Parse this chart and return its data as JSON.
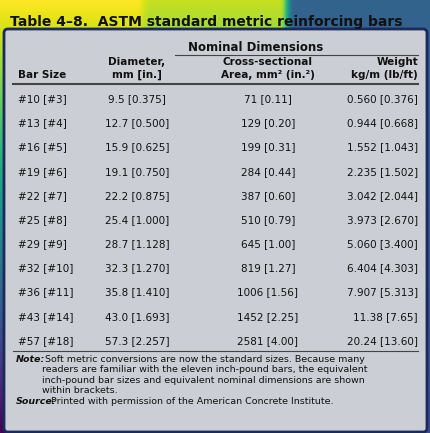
{
  "title": "Table 4–8.  ASTM standard metric reinforcing bars",
  "group_header": "Nominal Dimensions",
  "col_headers_row1": [
    "",
    "Diameter,",
    "Cross-sectional",
    "Weight"
  ],
  "col_headers_row2": [
    "Bar Size",
    "mm [in.]",
    "Area, mm² (in.²)",
    "kg/m (lb/ft)"
  ],
  "rows": [
    [
      "#10 [#3]",
      "9.5 [0.375]",
      "71 [0.11]",
      "0.560 [0.376]"
    ],
    [
      "#13 [#4]",
      "12.7 [0.500]",
      "129 [0.20]",
      "0.944 [0.668]"
    ],
    [
      "#16 [#5]",
      "15.9 [0.625]",
      "199 [0.31]",
      "1.552 [1.043]"
    ],
    [
      "#19 [#6]",
      "19.1 [0.750]",
      "284 [0.44]",
      "2.235 [1.502]"
    ],
    [
      "#22 [#7]",
      "22.2 [0.875]",
      "387 [0.60]",
      "3.042 [2.044]"
    ],
    [
      "#25 [#8]",
      "25.4 [1.000]",
      "510 [0.79]",
      "3.973 [2.670]"
    ],
    [
      "#29 [#9]",
      "28.7 [1.128]",
      "645 [1.00]",
      "5.060 [3.400]"
    ],
    [
      "#32 [#10]",
      "32.3 [1.270]",
      "819 [1.27]",
      "6.404 [4.303]"
    ],
    [
      "#36 [#11]",
      "35.8 [1.410]",
      "1006 [1.56]",
      "7.907 [5.313]"
    ],
    [
      "#43 [#14]",
      "43.0 [1.693]",
      "1452 [2.25]",
      "11.38 [7.65]"
    ],
    [
      "#57 [#18]",
      "57.3 [2.257]",
      "2581 [4.00]",
      "20.24 [13.60]"
    ]
  ],
  "note_italic": "Note:",
  "note_body": " Soft metric conversions are now the standard sizes. Because many\nreaders are familiar with the eleven inch-pound bars, the equivalent\ninch-pound bar sizes and equivalent nominal dimensions are shown\nwithin brackets.",
  "source_italic": "Source:",
  "source_body": " Printed with permission of the American Concrete Institute.",
  "bg_top_color": "#e8e4c8",
  "bg_bottom_color": "#b8bcc4",
  "table_bg": "#c8cbd0",
  "table_border_color": "#1a2a5a",
  "title_color": "#111111",
  "text_color": "#111111",
  "line_color": "#444444"
}
